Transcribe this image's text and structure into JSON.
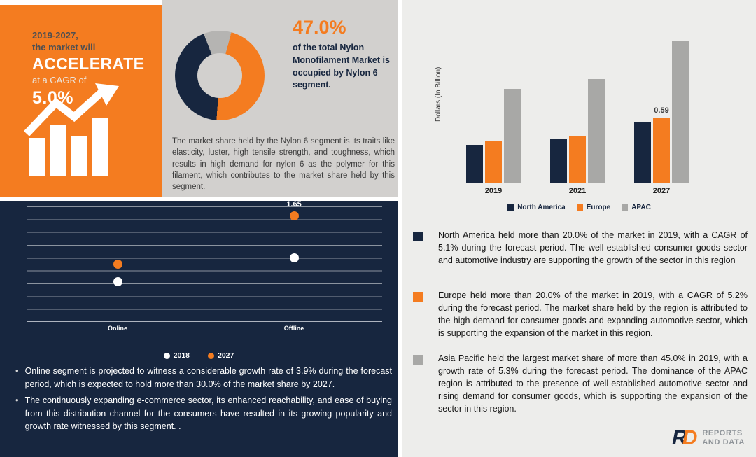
{
  "accelerate_box": {
    "line1": "2019-2027,",
    "line2": "the market will",
    "line3": "ACCELERATE",
    "line4": "at a CAGR of",
    "line5": "5.0%"
  },
  "donut_section": {
    "stat": "47.0%",
    "caption": "of the total Nylon Monofilament Market is occupied by Nylon 6 segment.",
    "description": "The market share held by the Nylon 6 segment is its traits like elasticity, luster, high tensile strength, and toughness, which results in high demand for nylon 6 as the polymer for this filament, which contributes to the market share held by this segment."
  },
  "left_bullets": [
    "Online segment is projected to witness a considerable growth rate of 3.9% during the forecast period, which is expected to hold more than 30.0% of the market share by 2027.",
    "The continuously expanding e-commerce sector, its enhanced reachability, and ease of buying from this distribution channel for the consumers have resulted in its growing popularity and growth rate witnessed by this segment. ."
  ],
  "region_bullets": [
    {
      "color": "#17263f",
      "text": "North America held more than 20.0% of the market in 2019, with a CAGR of 5.1% during the forecast period. The well-established consumer goods sector and automotive industry are supporting the growth of the sector in this region"
    },
    {
      "color": "#f47c20",
      "text": "Europe held more than 20.0% of the market in 2019, with a CAGR of 5.2% during the forecast period. The market share held by the region is attributed to the high demand for consumer goods and expanding automotive sector, which is supporting the expansion of the market in this region."
    },
    {
      "color": "#a8a8a6",
      "text": "Asia Pacific held the largest market share of more than 45.0% in 2019, with a growth rate of 5.3% during the forecast period. The dominance of the APAC region is attributed to the presence of well-established automotive sector and rising demand for consumer goods, which is supporting the expansion of the sector in this region."
    }
  ],
  "logo": {
    "mark_r": "R",
    "mark_d": "D",
    "line1": "REPORTS",
    "line2": "AND DATA"
  },
  "colors": {
    "accent_orange": "#f47c20",
    "navy": "#17263f",
    "panel_gray": "#d2d0ce",
    "right_panel_gray": "#ededeb",
    "bar_gray": "#a8a8a6"
  },
  "chart_data": [
    {
      "type": "pie",
      "donut": true,
      "segments": [
        {
          "label": "Nylon 6",
          "value": 47,
          "color": "#f47c20"
        },
        {
          "label": "Other segments",
          "value": 43,
          "color": "#17263f"
        },
        {
          "label": "Remainder",
          "value": 10,
          "color": "#b5b4b2"
        }
      ]
    },
    {
      "type": "scatter",
      "categories": [
        "Online",
        "Offline"
      ],
      "series": [
        {
          "name": "2018",
          "color": "#ffffff",
          "values": [
            0.63,
            1.0
          ]
        },
        {
          "name": "2027",
          "color": "#f47c20",
          "values": [
            0.9,
            1.65
          ]
        }
      ],
      "value_labels": [
        {
          "series": "2027",
          "category": "Offline",
          "text": "1.65"
        }
      ],
      "ylim": [
        0,
        1.8
      ],
      "grid": true,
      "legend_position": "bottom"
    },
    {
      "type": "bar",
      "categories": [
        "2019",
        "2021",
        "2027"
      ],
      "series": [
        {
          "name": "North America",
          "color": "#17263f",
          "values": [
            0.35,
            0.4,
            0.55
          ]
        },
        {
          "name": "Europe",
          "color": "#f47c20",
          "values": [
            0.38,
            0.43,
            0.59
          ]
        },
        {
          "name": "APAC",
          "color": "#a8a8a6",
          "values": [
            0.86,
            0.95,
            1.3
          ]
        }
      ],
      "ylabel": "Dollars (In Billion)",
      "value_labels": [
        {
          "series": "Europe",
          "category": "2027",
          "text": "0.59"
        }
      ],
      "ylim": [
        0,
        1.35
      ],
      "legend_position": "bottom"
    }
  ]
}
